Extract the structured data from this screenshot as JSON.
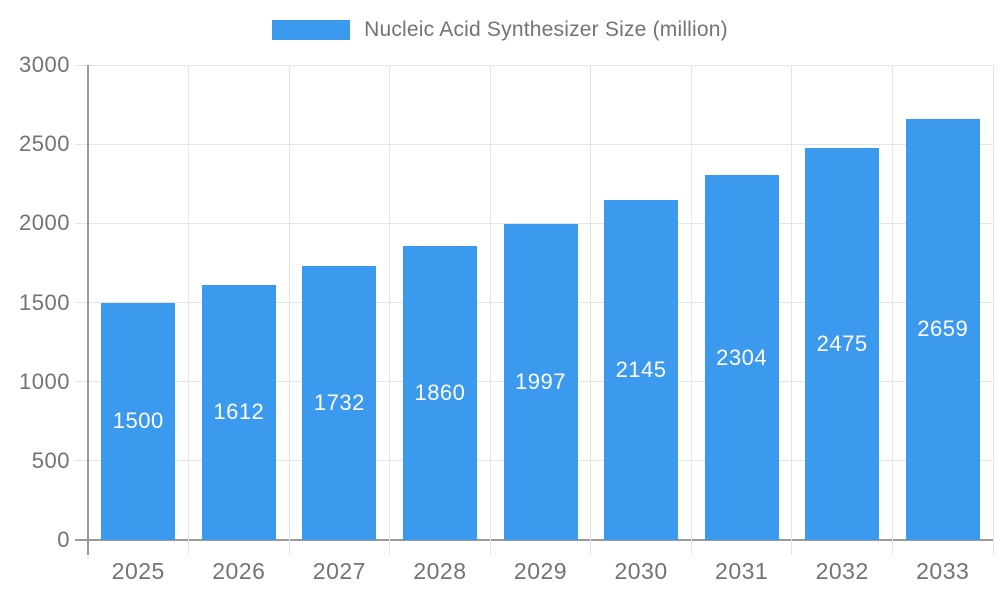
{
  "chart_data": {
    "type": "bar",
    "title": "",
    "legend": {
      "label": "Nucleic Acid Synthesizer Size (million)",
      "position": "top"
    },
    "categories": [
      "2025",
      "2026",
      "2027",
      "2028",
      "2029",
      "2030",
      "2031",
      "2032",
      "2033"
    ],
    "values": [
      1500,
      1612,
      1732,
      1860,
      1997,
      2145,
      2304,
      2475,
      2659
    ],
    "xlabel": "",
    "ylabel": "",
    "ylim": [
      0,
      3000
    ],
    "yticks": [
      0,
      500,
      1000,
      1500,
      2000,
      2500,
      3000
    ],
    "grid": true,
    "value_labels_inside_bars": true,
    "colors": {
      "bar": "#3B99EE",
      "value_label_text": "#FFFFFF",
      "axis_text": "#737373",
      "gridline": "#E5E5E5",
      "axis_line": "#9A9A9A",
      "background": "#FFFFFF"
    }
  }
}
